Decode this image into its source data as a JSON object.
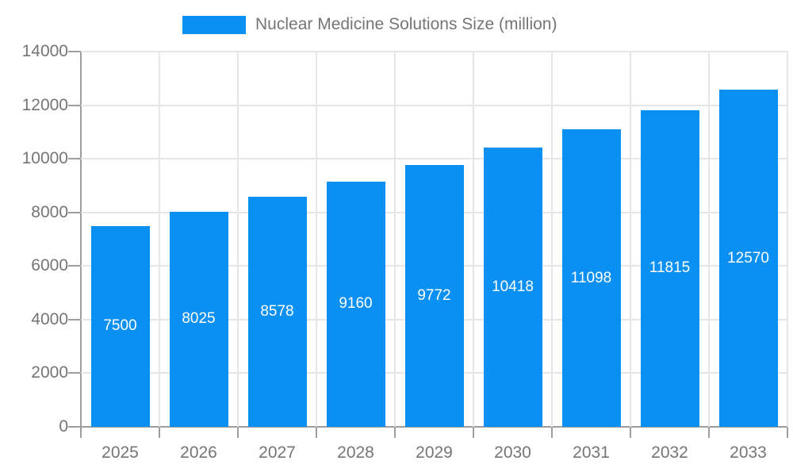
{
  "legend": {
    "label": "Nuclear Medicine Solutions Size (million)"
  },
  "chart_data": {
    "type": "bar",
    "title": "",
    "series_name": "Nuclear Medicine Solutions Size (million)",
    "categories": [
      "2025",
      "2026",
      "2027",
      "2028",
      "2029",
      "2030",
      "2031",
      "2032",
      "2033"
    ],
    "values": [
      7500,
      8025,
      8578,
      9160,
      9772,
      10418,
      11098,
      11815,
      12570
    ],
    "xlabel": "",
    "ylabel": "",
    "ylim": [
      0,
      14000
    ],
    "yticks": [
      0,
      2000,
      4000,
      6000,
      8000,
      10000,
      12000,
      14000
    ],
    "grid": true,
    "legend_position": "top",
    "bar_color": "#0a90f2",
    "value_label_color": "#ffffff",
    "axis_text_color": "#757575",
    "axis_line_color": "#9e9e9e",
    "gridline_color": "#e6e6e6"
  }
}
